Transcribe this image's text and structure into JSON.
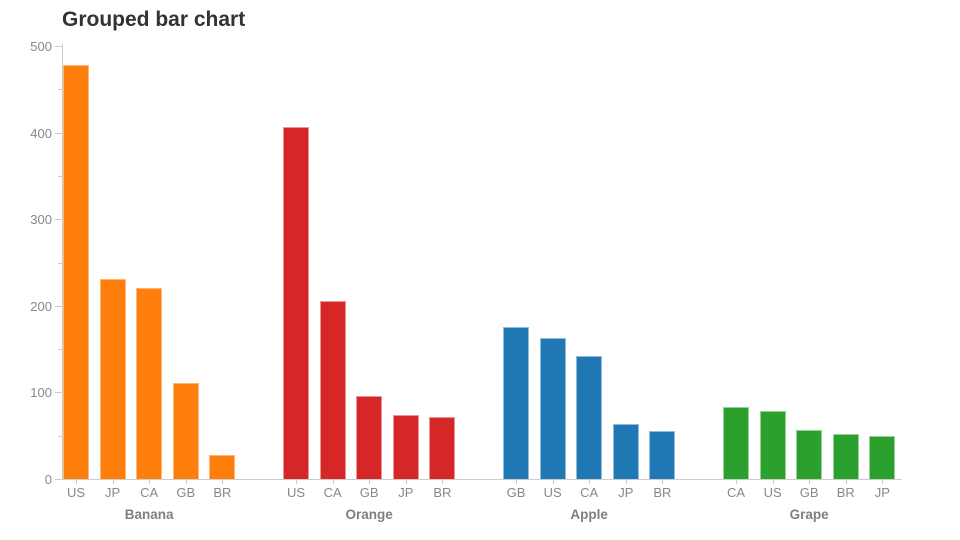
{
  "chart_data": {
    "type": "bar",
    "title": "Grouped bar chart",
    "xlabel": "",
    "ylabel": "",
    "ylim": [
      0,
      500
    ],
    "y_major_ticks": [
      0,
      100,
      200,
      300,
      400,
      500
    ],
    "y_minor_tick_step": 50,
    "grid": false,
    "legend_position": "none",
    "groups": [
      {
        "label": "Banana",
        "color": "#ff7f0e",
        "edge_color": "#ffb673",
        "categories": [
          "US",
          "JP",
          "CA",
          "GB",
          "BR"
        ],
        "values": [
          478,
          231,
          221,
          111,
          28
        ]
      },
      {
        "label": "Orange",
        "color": "#d62728",
        "edge_color": "#ea9495",
        "categories": [
          "US",
          "CA",
          "GB",
          "JP",
          "BR"
        ],
        "values": [
          407,
          206,
          96,
          74,
          72
        ]
      },
      {
        "label": "Apple",
        "color": "#1f77b4",
        "edge_color": "#8fbcda",
        "categories": [
          "GB",
          "US",
          "CA",
          "JP",
          "BR"
        ],
        "values": [
          175,
          163,
          142,
          64,
          55
        ]
      },
      {
        "label": "Grape",
        "color": "#2ca02c",
        "edge_color": "#96d096",
        "categories": [
          "CA",
          "US",
          "GB",
          "BR",
          "JP"
        ],
        "values": [
          83,
          78,
          57,
          52,
          50
        ]
      }
    ],
    "colors": {
      "axis": "#cccccc",
      "tick_label": "#888888",
      "group_label": "#7f7f7f",
      "title": "#333333",
      "background": "#ffffff"
    }
  }
}
